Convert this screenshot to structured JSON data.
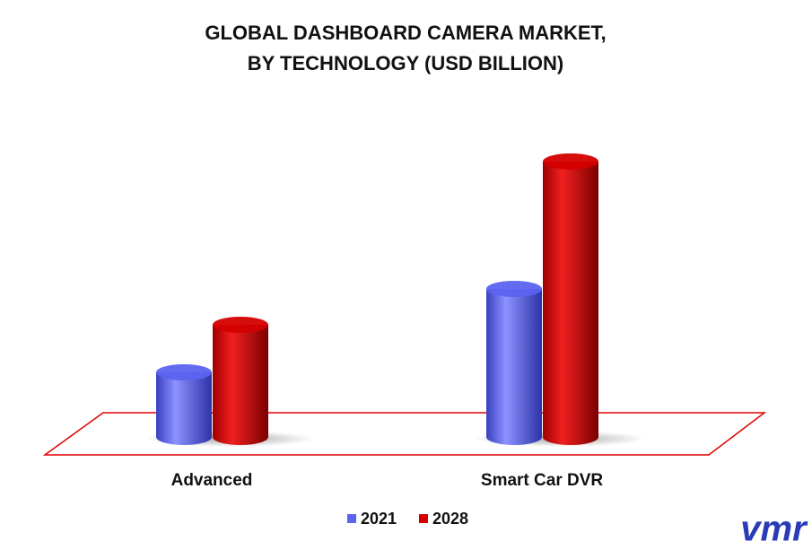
{
  "chart_data": {
    "type": "bar",
    "title": [
      "GLOBAL DASHBOARD CAMERA MARKET,",
      "BY TECHNOLOGY (USD BILLION)"
    ],
    "categories": [
      "Advanced",
      "Smart Car DVR"
    ],
    "series": [
      {
        "name": "2021",
        "color": "#5b63f0",
        "values": [
          0.72,
          1.65
        ]
      },
      {
        "name": "2028",
        "color": "#d40000",
        "values": [
          1.25,
          3.07
        ]
      }
    ],
    "logo": "vmr"
  }
}
